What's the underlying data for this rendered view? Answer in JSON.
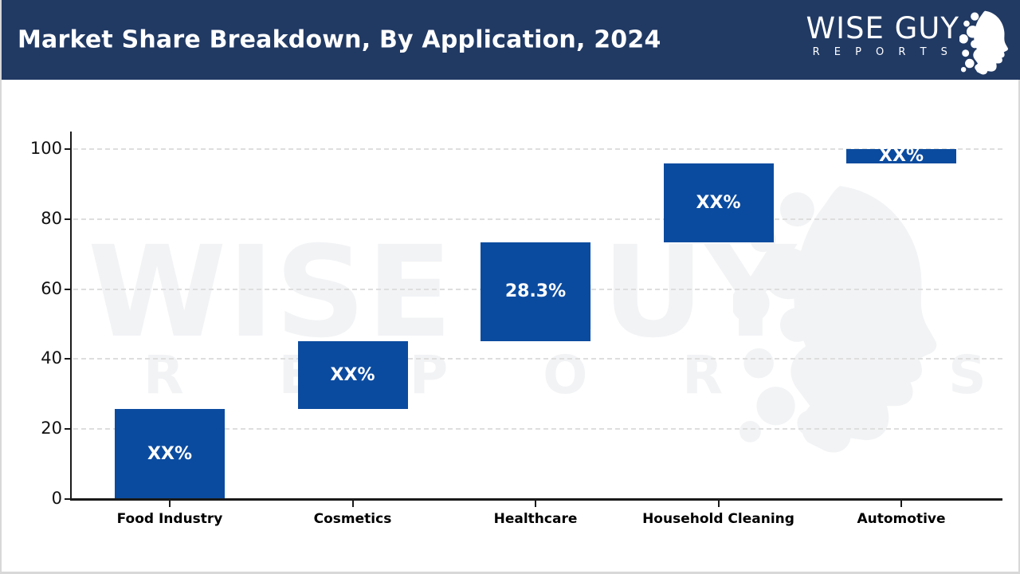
{
  "header": {
    "title": "Market Share Breakdown, By Application, 2024",
    "logo": {
      "line1": "WISE GUY",
      "line2": "R E P O R T S"
    }
  },
  "watermark": {
    "line1": "WISE GUY",
    "line2": "R E P O R T S"
  },
  "colors": {
    "header_bg": "#213A64",
    "bar_fill": "#0B4B9F",
    "bar_label": "#FFFFFF",
    "gridline": "#DEDEDE",
    "axis": "#1A1A1A",
    "watermark": "#F2F3F5"
  },
  "chart_data": {
    "type": "bar",
    "subtype": "waterfall",
    "title": "Market Share Breakdown, By Application, 2024",
    "xlabel": "",
    "ylabel": "",
    "ylim": [
      0,
      105
    ],
    "yticks": [
      0,
      20,
      40,
      60,
      80,
      100
    ],
    "grid": "horizontal dashed",
    "legend": "none",
    "categories": [
      "Food Industry",
      "Cosmetics",
      "Healthcare",
      "Household Cleaning",
      "Automotive"
    ],
    "segments": [
      {
        "category": "Food Industry",
        "start": 0,
        "end": 25.7,
        "value": 25.7,
        "label": "XX%"
      },
      {
        "category": "Cosmetics",
        "start": 25.7,
        "end": 45.0,
        "value": 19.3,
        "label": "XX%"
      },
      {
        "category": "Healthcare",
        "start": 45.0,
        "end": 73.3,
        "value": 28.3,
        "label": "28.3%"
      },
      {
        "category": "Household Cleaning",
        "start": 73.3,
        "end": 95.9,
        "value": 22.6,
        "label": "XX%"
      },
      {
        "category": "Automotive",
        "start": 95.9,
        "end": 100.0,
        "value": 4.1,
        "label": "XX%"
      }
    ]
  }
}
